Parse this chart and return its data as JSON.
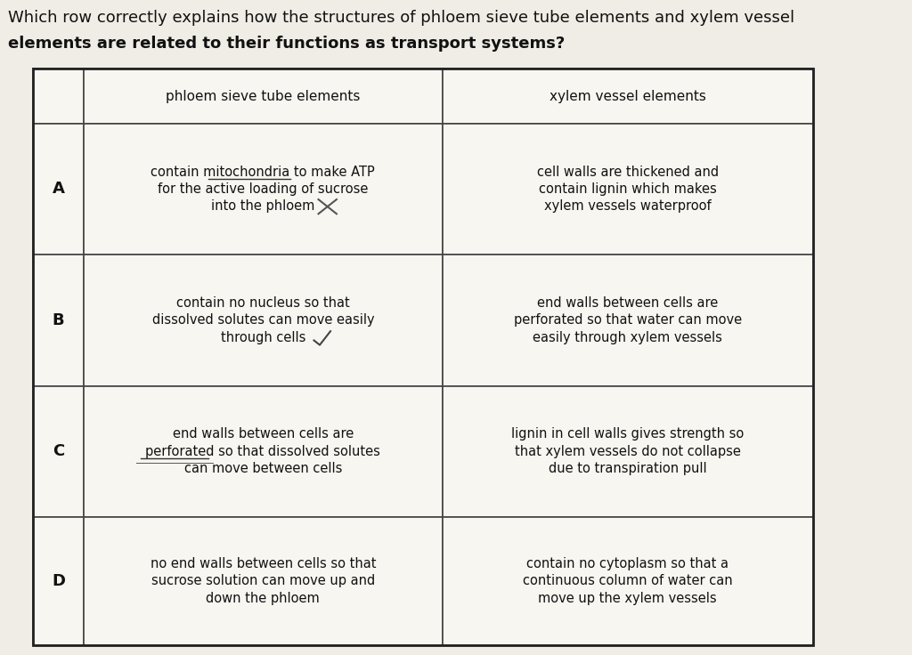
{
  "title_line1": "Which row correctly explains how the structures of phloem sieve tube elements and xylem vessel",
  "title_line2": "elements are related to their functions as transport systems?",
  "bg_color": "#f0ede6",
  "table_bg": "#f8f6f0",
  "header_row": [
    "",
    "phloem sieve tube elements",
    "xylem vessel elements"
  ],
  "rows": [
    {
      "label": "A",
      "phloem": "contain mitochondria to make ATP\nfor the active loading of sucrose\ninto the phloem",
      "xylem": "cell walls are thickened and\ncontain lignin which makes\nxylem vessels waterproof"
    },
    {
      "label": "B",
      "phloem": "contain no nucleus so that\ndissolved solutes can move easily\nthrough cells",
      "xylem": "end walls between cells are\nperforated so that water can move\neasily through xylem vessels"
    },
    {
      "label": "C",
      "phloem": "end walls between cells are\nperforated so that dissolved solutes\ncan move between cells",
      "xylem": "lignin in cell walls gives strength so\nthat xylem vessels do not collapse\ndue to transpiration pull"
    },
    {
      "label": "D",
      "phloem": "no end walls between cells so that\nsucrose solution can move up and\ndown the phloem",
      "xylem": "contain no cytoplasm so that a\ncontinuous column of water can\nmove up the xylem vessels"
    }
  ],
  "font_size": 10.5,
  "header_font_size": 11,
  "title_font_size": 13,
  "label_font_size": 13
}
